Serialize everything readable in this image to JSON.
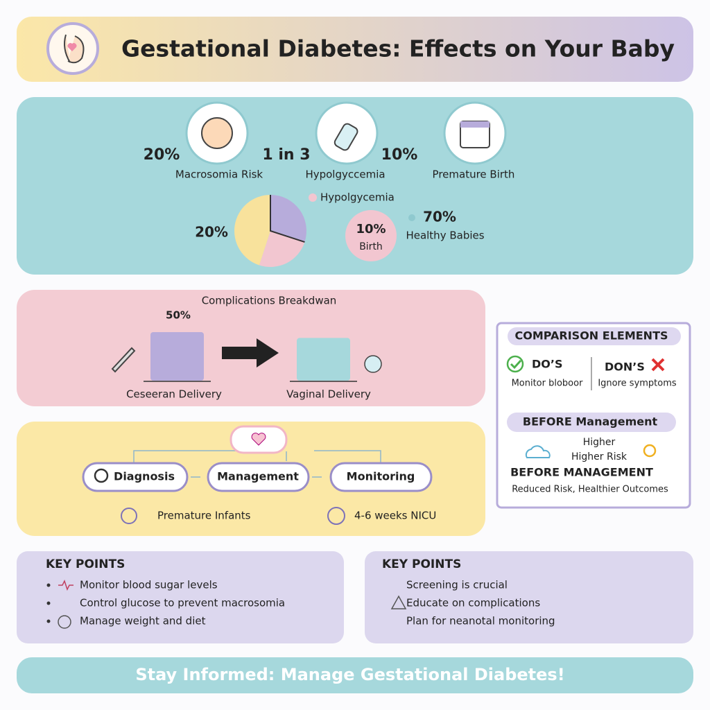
{
  "header": {
    "title": "Gestational Diabetes: Effects on Your Baby"
  },
  "stats": [
    {
      "value": "20%",
      "label": "Macrosomia Risk"
    },
    {
      "value": "1 in 3",
      "label": "Hypolgyccemia"
    },
    {
      "value": "10%",
      "label": "Premature Birth"
    }
  ],
  "pie": {
    "slices": [
      {
        "value": 30,
        "color": "#b7acdb"
      },
      {
        "value": 25,
        "color": "#f2c6d0"
      },
      {
        "value": 45,
        "color": "#f8e29c"
      }
    ],
    "label": "20%",
    "legend": "Hypolgycemia"
  },
  "bubble": {
    "value": "10%",
    "label": "Birth"
  },
  "healthy": {
    "value": "70%",
    "label": "Healthy Babies"
  },
  "complications": {
    "title": "Complications Breakdwan",
    "bars": [
      {
        "label": "Ceseeran Delivery",
        "value": 50,
        "value_label": "50%",
        "color": "#b7acdb"
      },
      {
        "label": "Vaginal Delivery",
        "value": 44,
        "color": "#a6d8dc"
      }
    ]
  },
  "flow": {
    "steps": [
      "Diagnosis",
      "Management",
      "Monitoring"
    ],
    "notes": [
      "Premature Infants",
      "4-6 weeks NICU"
    ]
  },
  "comparison": {
    "title": "COMPARISON ELEMENTS",
    "dos": "DO’S",
    "dos_text": "Monitor bloboor",
    "donts": "DON’S",
    "donts_text": "Ignore symptoms",
    "before_title": "BEFORE Management",
    "higher": "Higher",
    "higher_risk": "Higher Risk",
    "before_title2": "BEFORE MANAGEMENT",
    "outcome": "Reduced Risk, Healthier Outcomes"
  },
  "key_points": [
    {
      "title": "KEY POINTS",
      "items": [
        "Monitor blood sugar levels",
        "Control glucose to prevent macrosomia",
        "Manage weight and diet"
      ]
    },
    {
      "title": "KEY POINTS",
      "items": [
        "Screening is crucial",
        "Educate on complications",
        "Plan for neanotal monitoring"
      ]
    }
  ],
  "footer": "Stay Informed: Manage Gestational Diabetes!"
}
